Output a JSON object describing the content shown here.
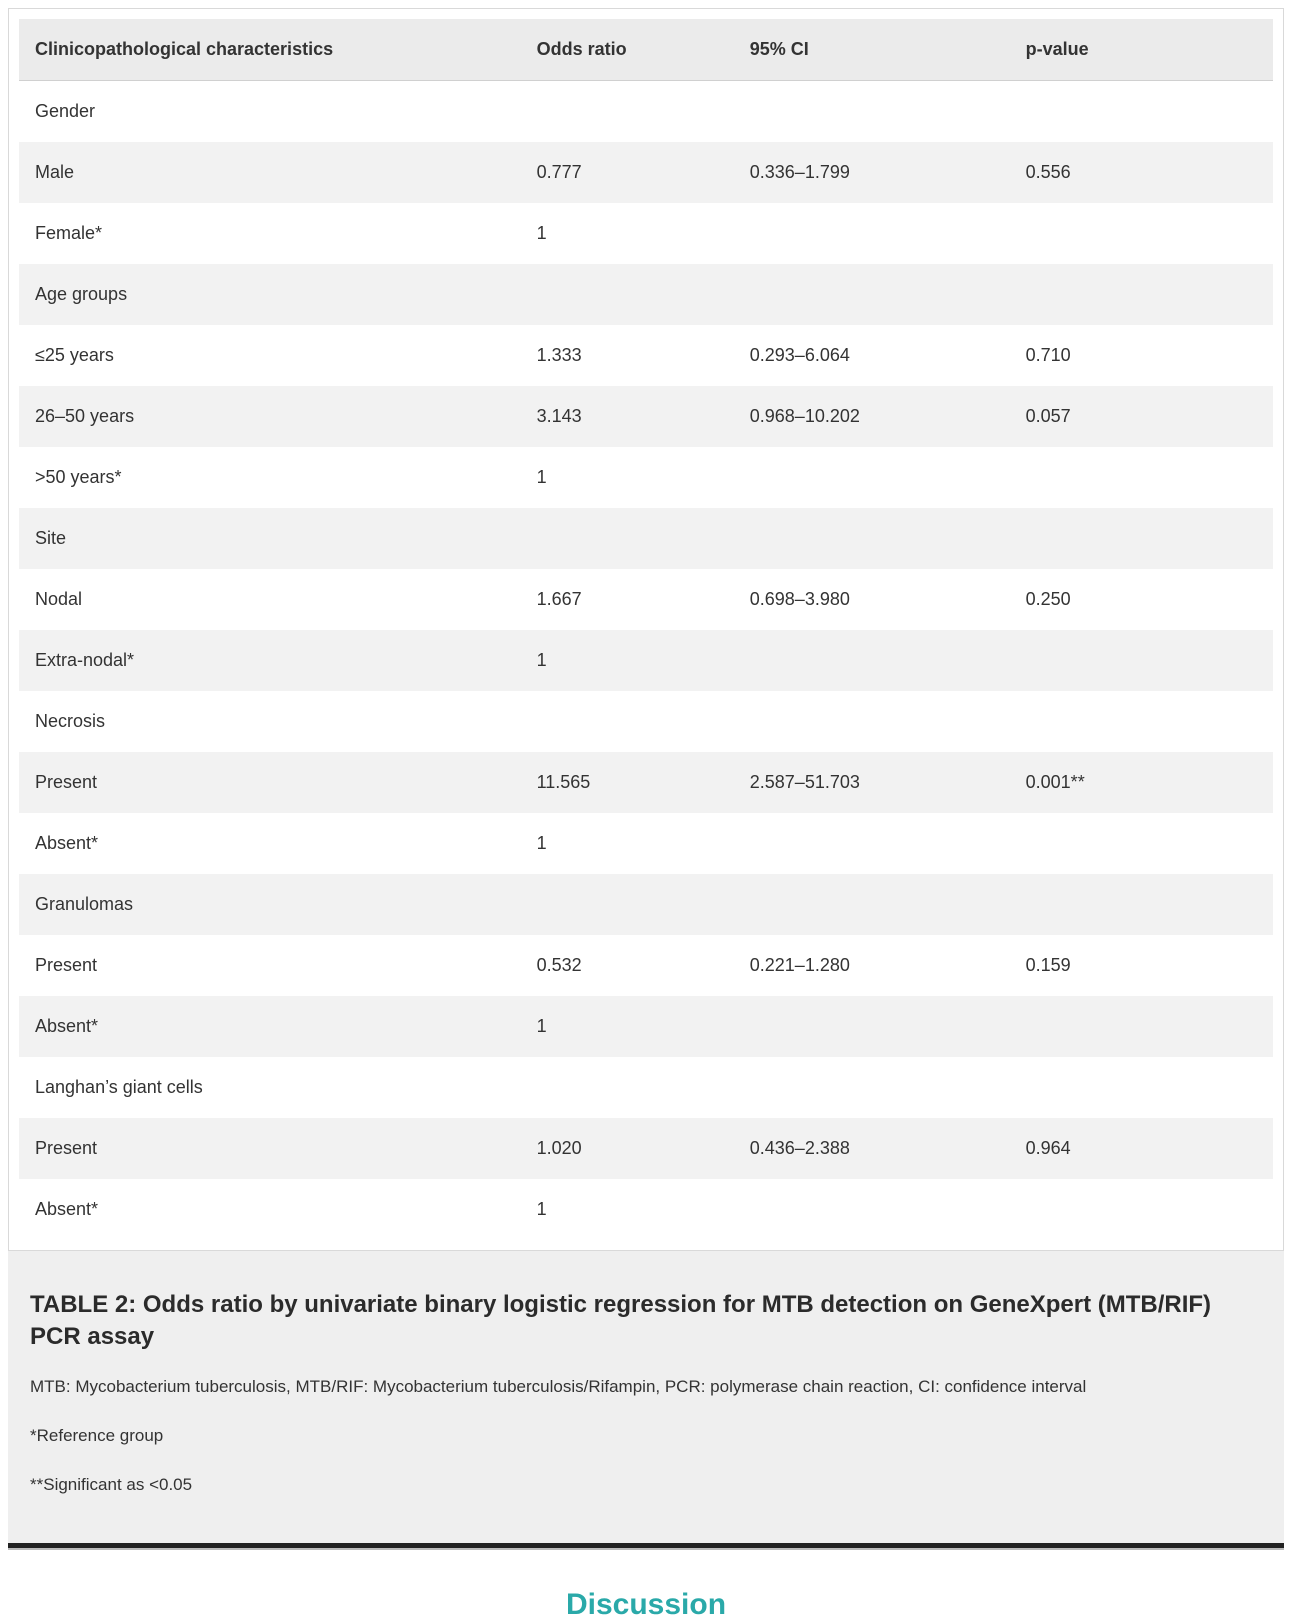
{
  "table": {
    "headers": {
      "characteristics": "Clinicopathological characteristics",
      "odds_ratio": "Odds ratio",
      "ci": "95% CI",
      "pvalue": "p-value"
    },
    "rows": [
      {
        "c0": "Gender",
        "c1": "",
        "c2": "",
        "c3": ""
      },
      {
        "c0": "Male",
        "c1": "0.777",
        "c2": "0.336–1.799",
        "c3": "0.556"
      },
      {
        "c0": "Female*",
        "c1": "1",
        "c2": "",
        "c3": ""
      },
      {
        "c0": "Age groups",
        "c1": "",
        "c2": "",
        "c3": ""
      },
      {
        "c0": "≤25 years",
        "c1": "1.333",
        "c2": "0.293–6.064",
        "c3": "0.710"
      },
      {
        "c0": "26–50 years",
        "c1": "3.143",
        "c2": "0.968–10.202",
        "c3": "0.057"
      },
      {
        "c0": ">50 years*",
        "c1": "1",
        "c2": "",
        "c3": ""
      },
      {
        "c0": "Site",
        "c1": "",
        "c2": "",
        "c3": ""
      },
      {
        "c0": "Nodal",
        "c1": "1.667",
        "c2": "0.698–3.980",
        "c3": "0.250"
      },
      {
        "c0": "Extra-nodal*",
        "c1": "1",
        "c2": "",
        "c3": ""
      },
      {
        "c0": "Necrosis",
        "c1": "",
        "c2": "",
        "c3": ""
      },
      {
        "c0": "Present",
        "c1": "11.565",
        "c2": "2.587–51.703",
        "c3": "0.001**"
      },
      {
        "c0": "Absent*",
        "c1": "1",
        "c2": "",
        "c3": ""
      },
      {
        "c0": "Granulomas",
        "c1": "",
        "c2": "",
        "c3": ""
      },
      {
        "c0": "Present",
        "c1": "0.532",
        "c2": "0.221–1.280",
        "c3": "0.159"
      },
      {
        "c0": "Absent*",
        "c1": "1",
        "c2": "",
        "c3": ""
      },
      {
        "c0": "Langhan’s giant cells",
        "c1": "",
        "c2": "",
        "c3": ""
      },
      {
        "c0": "Present",
        "c1": "1.020",
        "c2": "0.436–2.388",
        "c3": "0.964"
      },
      {
        "c0": "Absent*",
        "c1": "1",
        "c2": "",
        "c3": ""
      }
    ]
  },
  "caption": {
    "title": "TABLE 2: Odds ratio by univariate binary logistic regression for MTB detection on GeneXpert (MTB/RIF) PCR assay",
    "abbrev": "MTB: Mycobacterium tuberculosis, MTB/RIF: Mycobacterium tuberculosis/Rifampin, PCR: polymerase chain reaction, CI: confidence interval",
    "note_ref": "*Reference group",
    "note_sig": "**Significant as <0.05"
  },
  "section_heading": "Discussion",
  "colors": {
    "header_bg": "#ebebeb",
    "row_even_bg": "#f2f2f2",
    "caption_bg": "#efefef",
    "heading_color": "#2aa9a9",
    "rule_thick": "#222222"
  }
}
